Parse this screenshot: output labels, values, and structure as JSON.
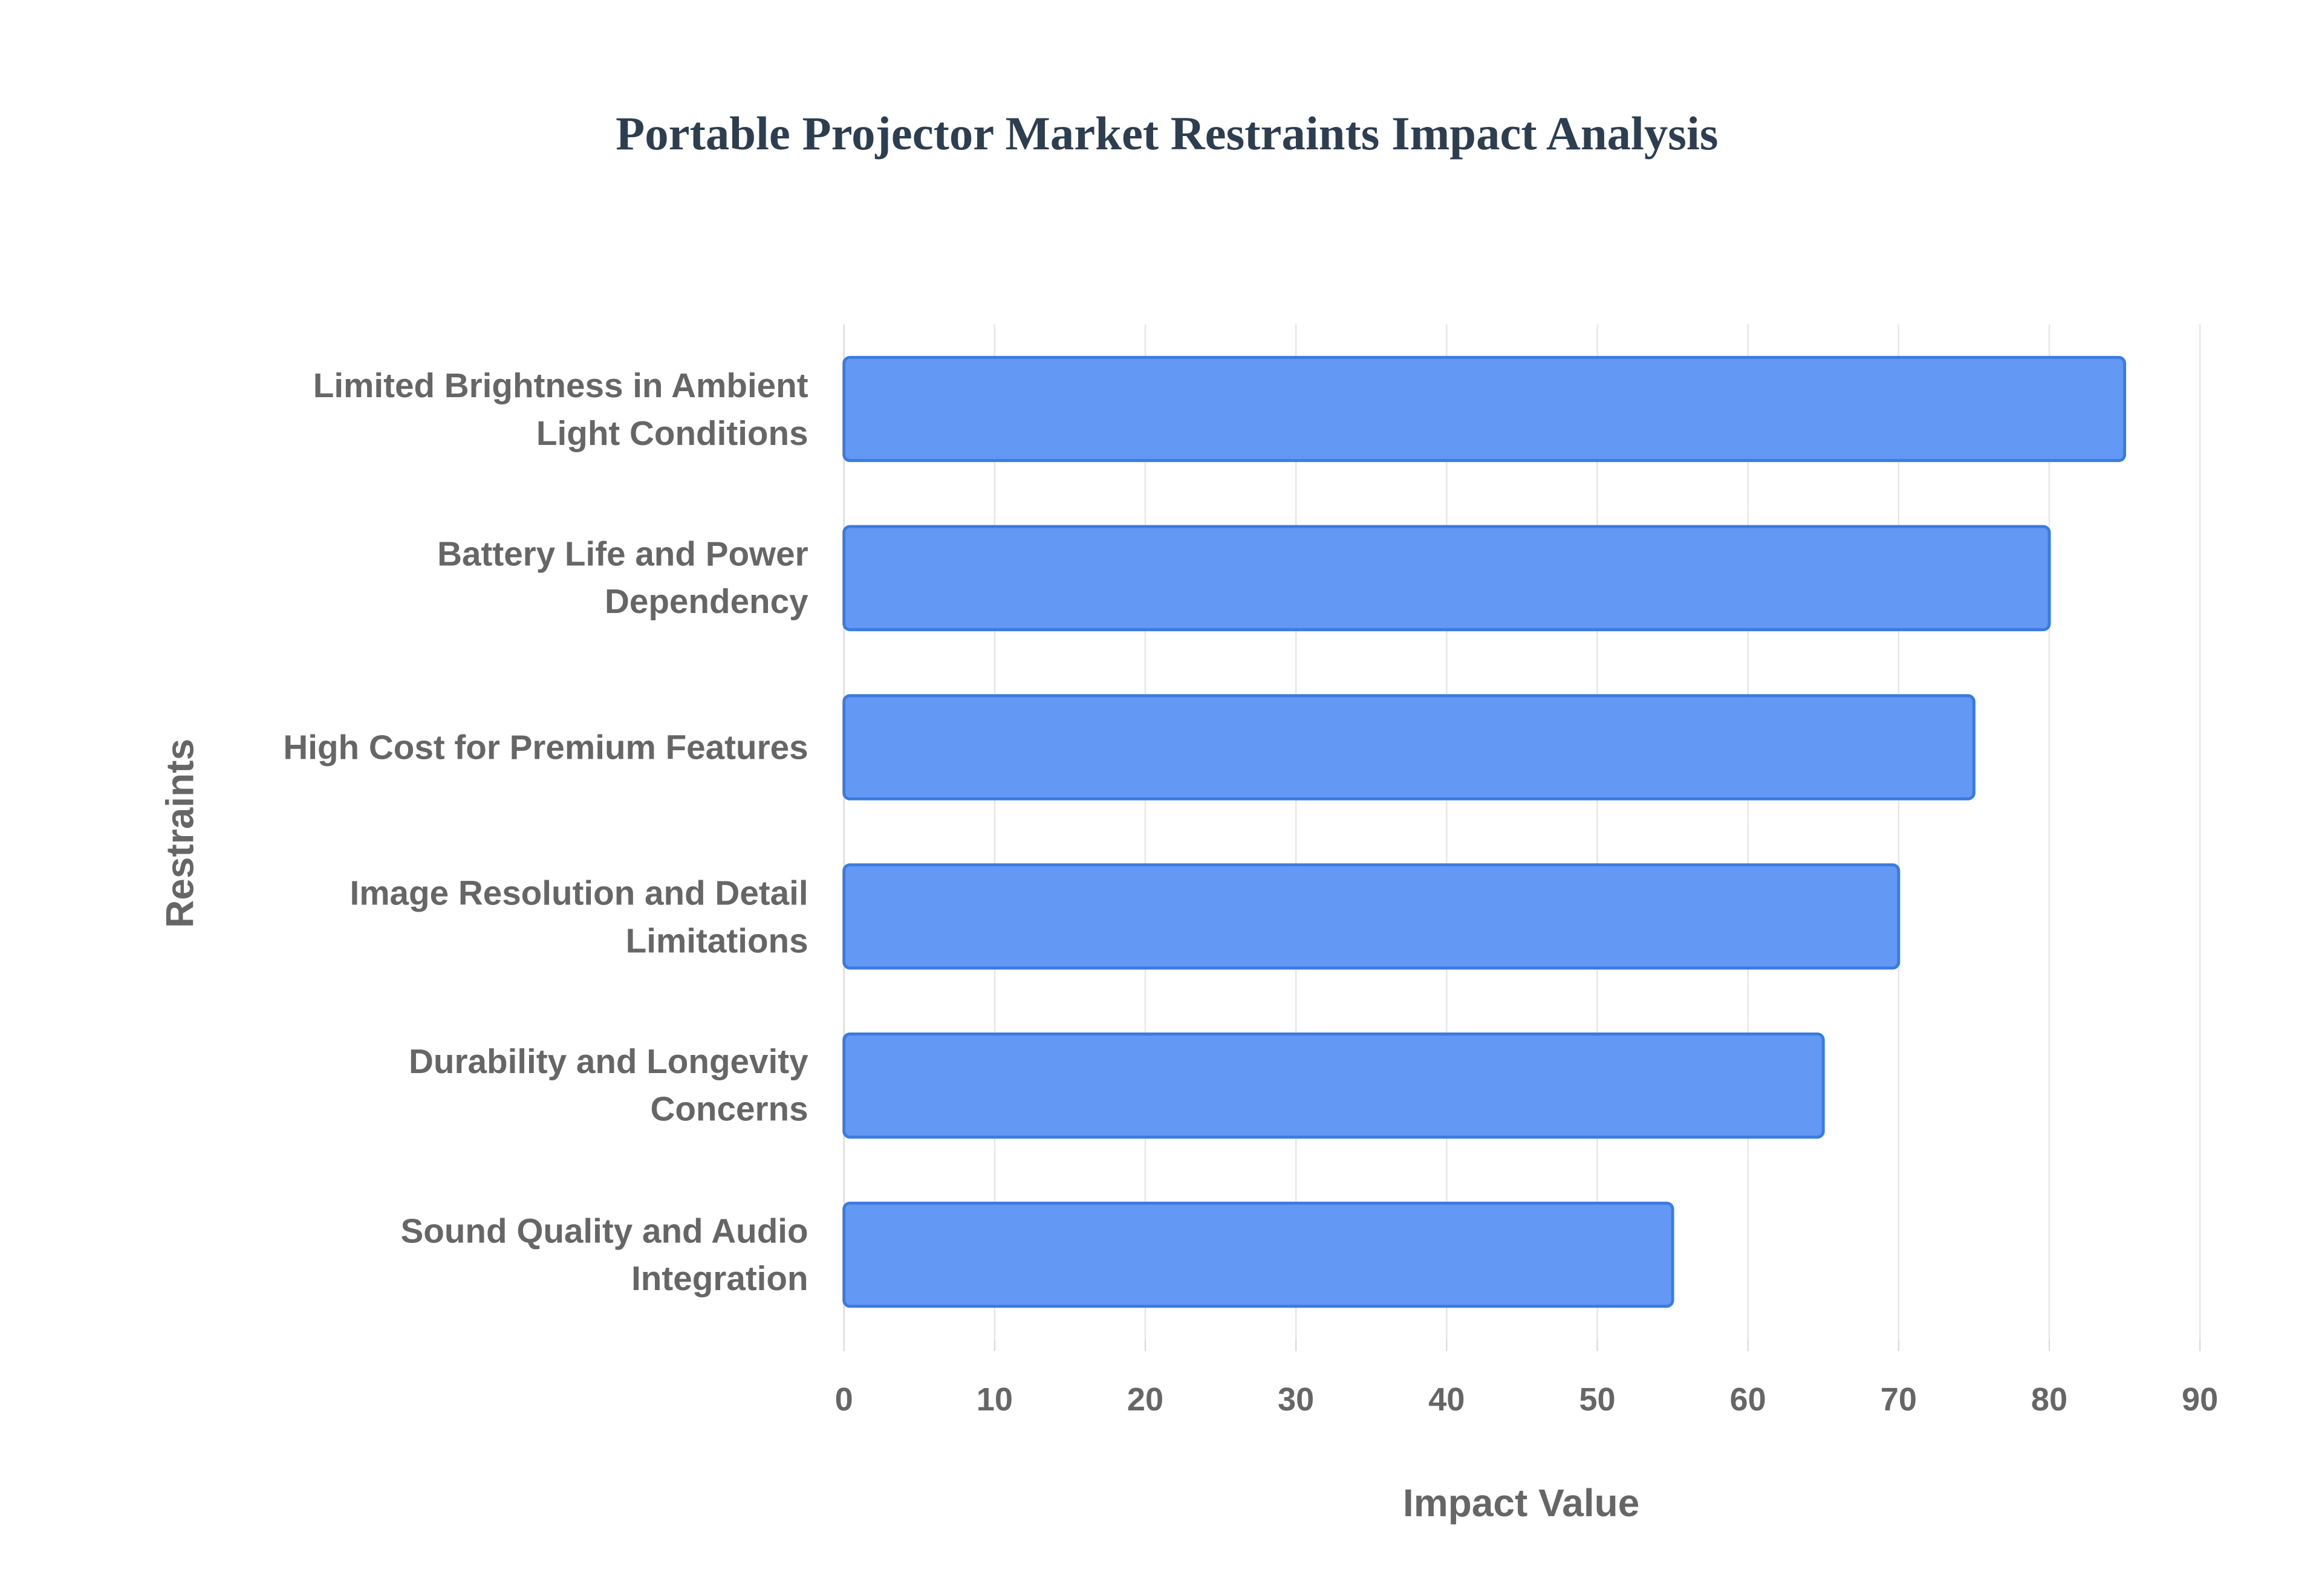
{
  "chart_data": {
    "type": "bar",
    "orientation": "horizontal",
    "title": "Portable Projector Market Restraints Impact Analysis",
    "x_label": "Impact Value",
    "y_label": "Restraints",
    "categories": [
      "Limited Brightness in Ambient Light Conditions",
      "Battery Life and Power Dependency",
      "High Cost for Premium Features",
      "Image Resolution and Detail Limitations",
      "Durability and Longevity Concerns",
      "Sound Quality and Audio Integration"
    ],
    "values": [
      85,
      80,
      75,
      70,
      65,
      55
    ],
    "color": "#6399f5",
    "xlim": [
      0,
      90
    ],
    "xticks": [
      0,
      10,
      20,
      30,
      40,
      50,
      60,
      70,
      80,
      90
    ],
    "grid": true
  }
}
